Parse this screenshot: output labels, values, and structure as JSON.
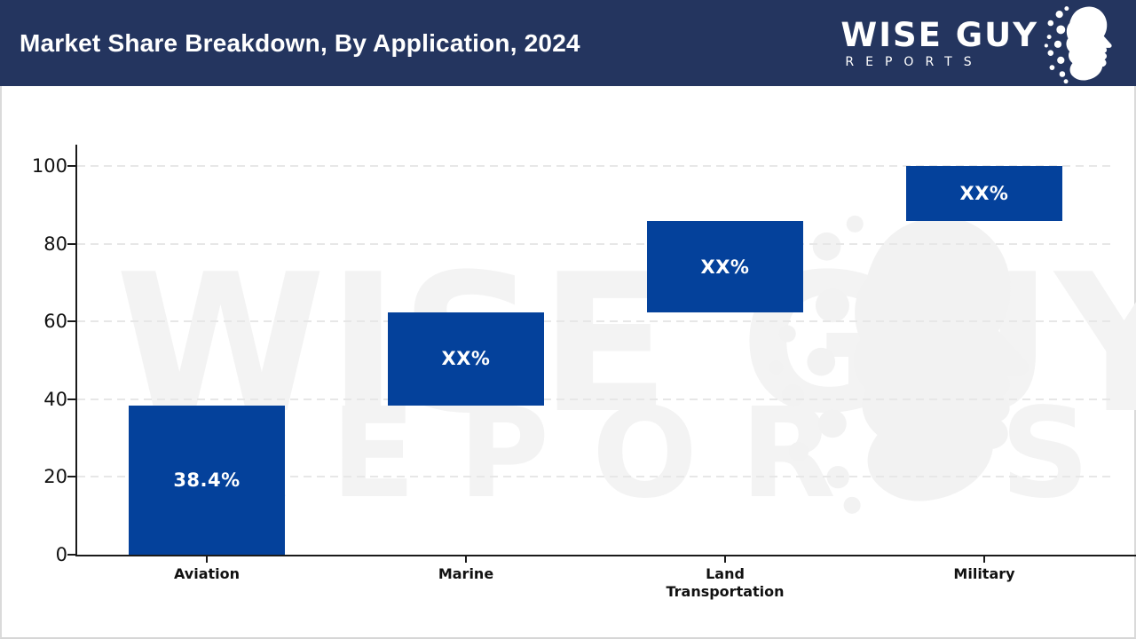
{
  "header": {
    "title": "Market Share Breakdown, By Application, 2024",
    "background_color": "#24355f",
    "logo": {
      "line1": "WISE GUY",
      "line2": "REPORTS",
      "face_icon": "dotted-head-profile"
    }
  },
  "watermark": {
    "line1": "WISE GUY",
    "line2": "REPORTS",
    "face_icon": "dotted-head-profile",
    "color": "#f3f3f3"
  },
  "chart_data": {
    "type": "bar",
    "subtype": "floating-waterfall",
    "title": "Market Share Breakdown, By Application, 2024",
    "categories": [
      "Aviation",
      "Marine",
      "Land Transportation",
      "Military"
    ],
    "bars": [
      {
        "category": "Aviation",
        "start": 0,
        "end": 38.4,
        "label": "38.4%"
      },
      {
        "category": "Marine",
        "start": 38.4,
        "end": 62.3,
        "label": "XX%"
      },
      {
        "category": "Land Transportation",
        "start": 62.3,
        "end": 85.8,
        "label": "XX%"
      },
      {
        "category": "Military",
        "start": 85.8,
        "end": 100,
        "label": "XX%"
      }
    ],
    "xlabel": "",
    "ylabel": "",
    "ylim": [
      0,
      105
    ],
    "yticks": [
      0,
      20,
      40,
      60,
      80,
      100
    ],
    "grid": "horizontal-dashed",
    "legend": "none",
    "bar_color": "#04419b",
    "gridline_color": "#e7e7e7",
    "axis_color": "#1a1a1a"
  }
}
